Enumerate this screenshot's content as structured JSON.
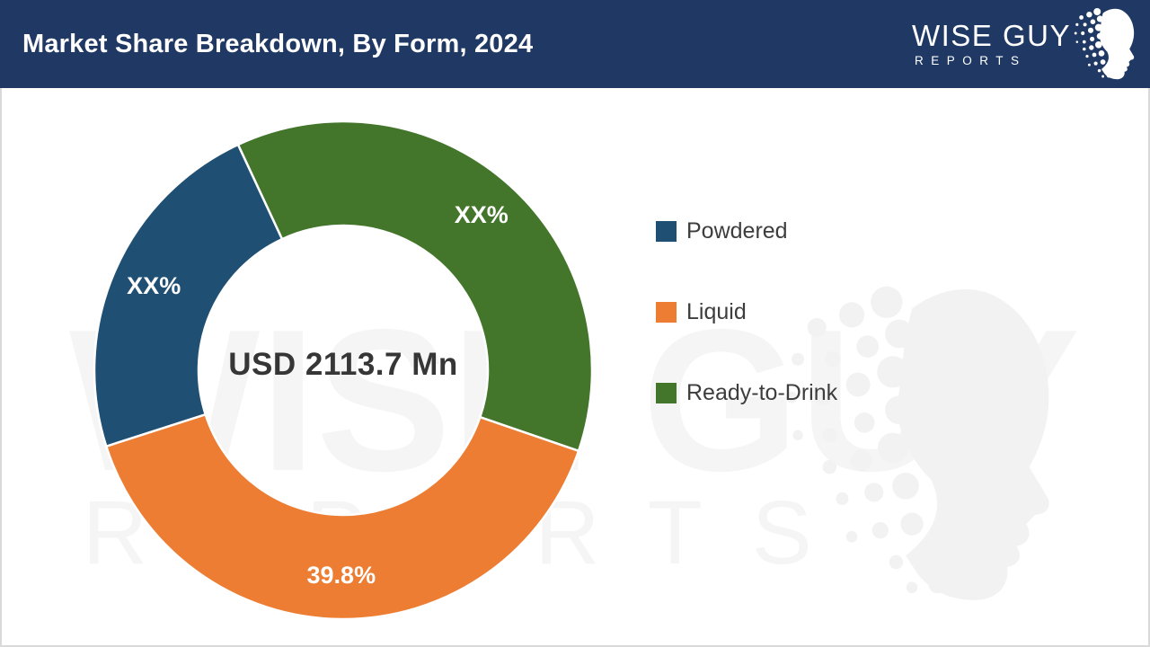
{
  "header": {
    "title": "Market Share Breakdown, By Form, 2024",
    "logo": {
      "name_top": "WISE GUY",
      "name_bottom": "REPORTS"
    }
  },
  "watermark": {
    "line1": "WISE GUY",
    "line2": "REPORTS"
  },
  "chart_data": {
    "type": "pie",
    "subtype": "donut",
    "title": "Market Share Breakdown, By Form, 2024",
    "center_label": "USD 2113.7 Mn",
    "start_angle_deg": 115,
    "direction": "clockwise",
    "hole_radius_ratio": 0.58,
    "slices": [
      {
        "label": "Ready-to-Drink",
        "display_value": "XX%",
        "est_pct": 37.2,
        "color": "#43762b"
      },
      {
        "label": "Liquid",
        "display_value": "39.8%",
        "est_pct": 39.8,
        "color": "#ec7d33"
      },
      {
        "label": "Powdered",
        "display_value": "XX%",
        "est_pct": 23.0,
        "color": "#1f5074"
      }
    ],
    "legend_position": "right",
    "legend": [
      {
        "label": "Powdered",
        "color": "#1f5074"
      },
      {
        "label": "Liquid",
        "color": "#ec7d33"
      },
      {
        "label": "Ready-to-Drink",
        "color": "#43762b"
      }
    ]
  },
  "colors": {
    "header_bg": "#1f3864",
    "content_border": "#d9d9d9",
    "center_text": "#363636",
    "legend_text": "#3d3d3d",
    "slice_label_text": "#ffffff",
    "watermark": "#f5f5f5",
    "watermark_head": "#f2f2f2"
  }
}
